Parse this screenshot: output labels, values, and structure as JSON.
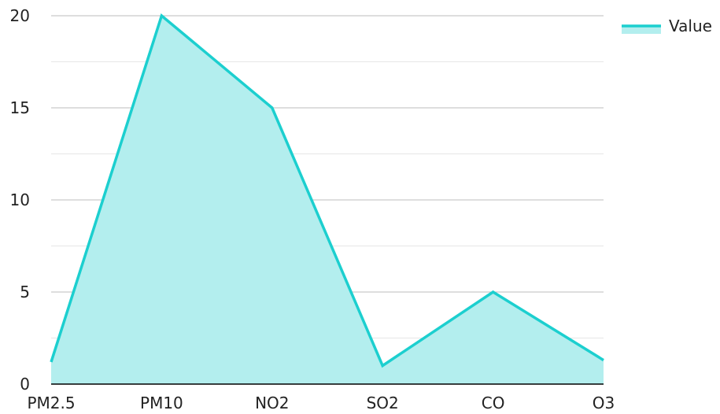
{
  "chart_data": {
    "type": "area",
    "categories": [
      "PM2.5",
      "PM10",
      "NO2",
      "SO2",
      "CO",
      "O3"
    ],
    "series": [
      {
        "name": "Value",
        "values": [
          1.2,
          20,
          15,
          1,
          5,
          1.3
        ]
      }
    ],
    "ylim": [
      0,
      20
    ],
    "yticks": [
      0,
      5,
      10,
      15,
      20
    ],
    "ytick_labels": [
      "0",
      "5",
      "10",
      "15",
      "20"
    ],
    "grid": true,
    "minor_grid": true,
    "legend_position": "top-right",
    "colors": {
      "line": "#1ccfcf",
      "fill": "#b3eeee",
      "grid_major": "#bdbdbd",
      "grid_minor": "#e6e6e6",
      "axis": "#000000"
    }
  }
}
